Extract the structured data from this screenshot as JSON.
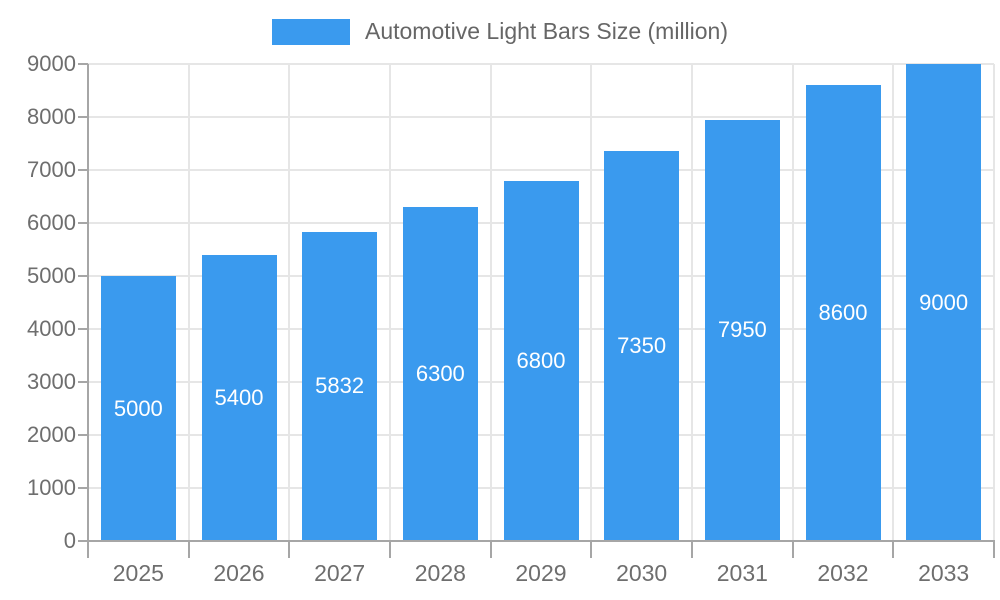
{
  "legend": {
    "label": "Automotive Light Bars Size (million)"
  },
  "colors": {
    "bar_fill": "#3A9AEE",
    "gridline": "#e6e6e6",
    "axis_line": "#a6a6a6",
    "tick_text": "#6e6e6e",
    "legend_text": "#666666",
    "bar_label_text": "#ffffff",
    "background": "#ffffff"
  },
  "chart_data": {
    "type": "bar",
    "title": "Automotive Light Bars Size (million)",
    "categories": [
      "2025",
      "2026",
      "2027",
      "2028",
      "2029",
      "2030",
      "2031",
      "2032",
      "2033"
    ],
    "values": [
      5000,
      5400,
      5832,
      6300,
      6800,
      7350,
      7950,
      8600,
      9000
    ],
    "value_labels": [
      "5000",
      "5400",
      "5832",
      "6300",
      "6800",
      "7350",
      "7950",
      "8600",
      "9000"
    ],
    "value_label_position": "inside-center",
    "xlabel": "",
    "ylabel": "",
    "ylim": [
      0,
      9000
    ],
    "yticks": [
      "0",
      "1000",
      "2000",
      "3000",
      "4000",
      "5000",
      "6000",
      "7000",
      "8000",
      "9000"
    ],
    "grid": true,
    "legend_position": "top"
  }
}
